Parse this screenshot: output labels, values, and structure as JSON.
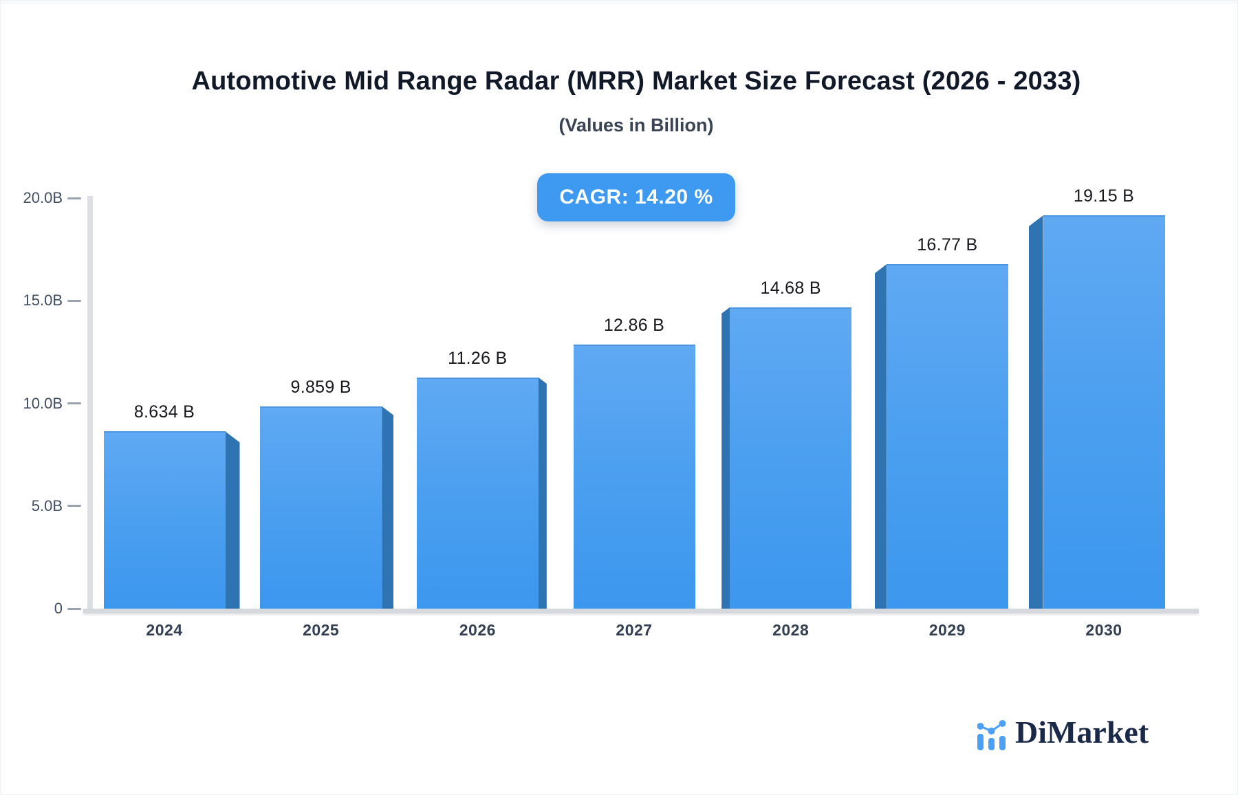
{
  "header": {
    "title": "Automotive Mid Range Radar (MRR) Market Size Forecast (2026 - 2033)",
    "subtitle": "(Values in Billion)",
    "cagr_badge_label": "CAGR: 14.20 %"
  },
  "chart_data": {
    "type": "bar",
    "title": "Automotive Mid Range Radar (MRR) Market Size Forecast (2026 - 2033)",
    "subtitle": "(Values in Billion)",
    "cagr": "14.20 %",
    "categories": [
      "2024",
      "2025",
      "2026",
      "2027",
      "2028",
      "2029",
      "2030"
    ],
    "values": [
      8.634,
      9.859,
      11.26,
      12.86,
      14.68,
      16.77,
      19.15
    ],
    "value_labels": [
      "8.634 B",
      "9.859 B",
      "11.26 B",
      "12.86 B",
      "14.68 B",
      "16.77 B",
      "19.15 B"
    ],
    "ylim": [
      0,
      20
    ],
    "y_ticks": [
      {
        "value": 0,
        "label": "0"
      },
      {
        "value": 5,
        "label": "5.0B"
      },
      {
        "value": 10,
        "label": "10.0B"
      },
      {
        "value": 15,
        "label": "15.0B"
      },
      {
        "value": 20,
        "label": "20.0B"
      }
    ],
    "grid": "off",
    "legend": "none",
    "bar_style": "3d-beveled",
    "colors": {
      "bar_face_top": "#60a9f3",
      "bar_face_bottom": "#3c97ee",
      "bar_side": "#2e74b3",
      "axis": "#d5d9de",
      "tick_text": "#414e61",
      "badge_bg": "#3d9af0"
    }
  },
  "branding": {
    "logo_text": "DiMarket",
    "logo_icon": "bar-line-chart-icon",
    "logo_icon_color": "#4aa0f4",
    "logo_text_color": "#1a2947"
  }
}
